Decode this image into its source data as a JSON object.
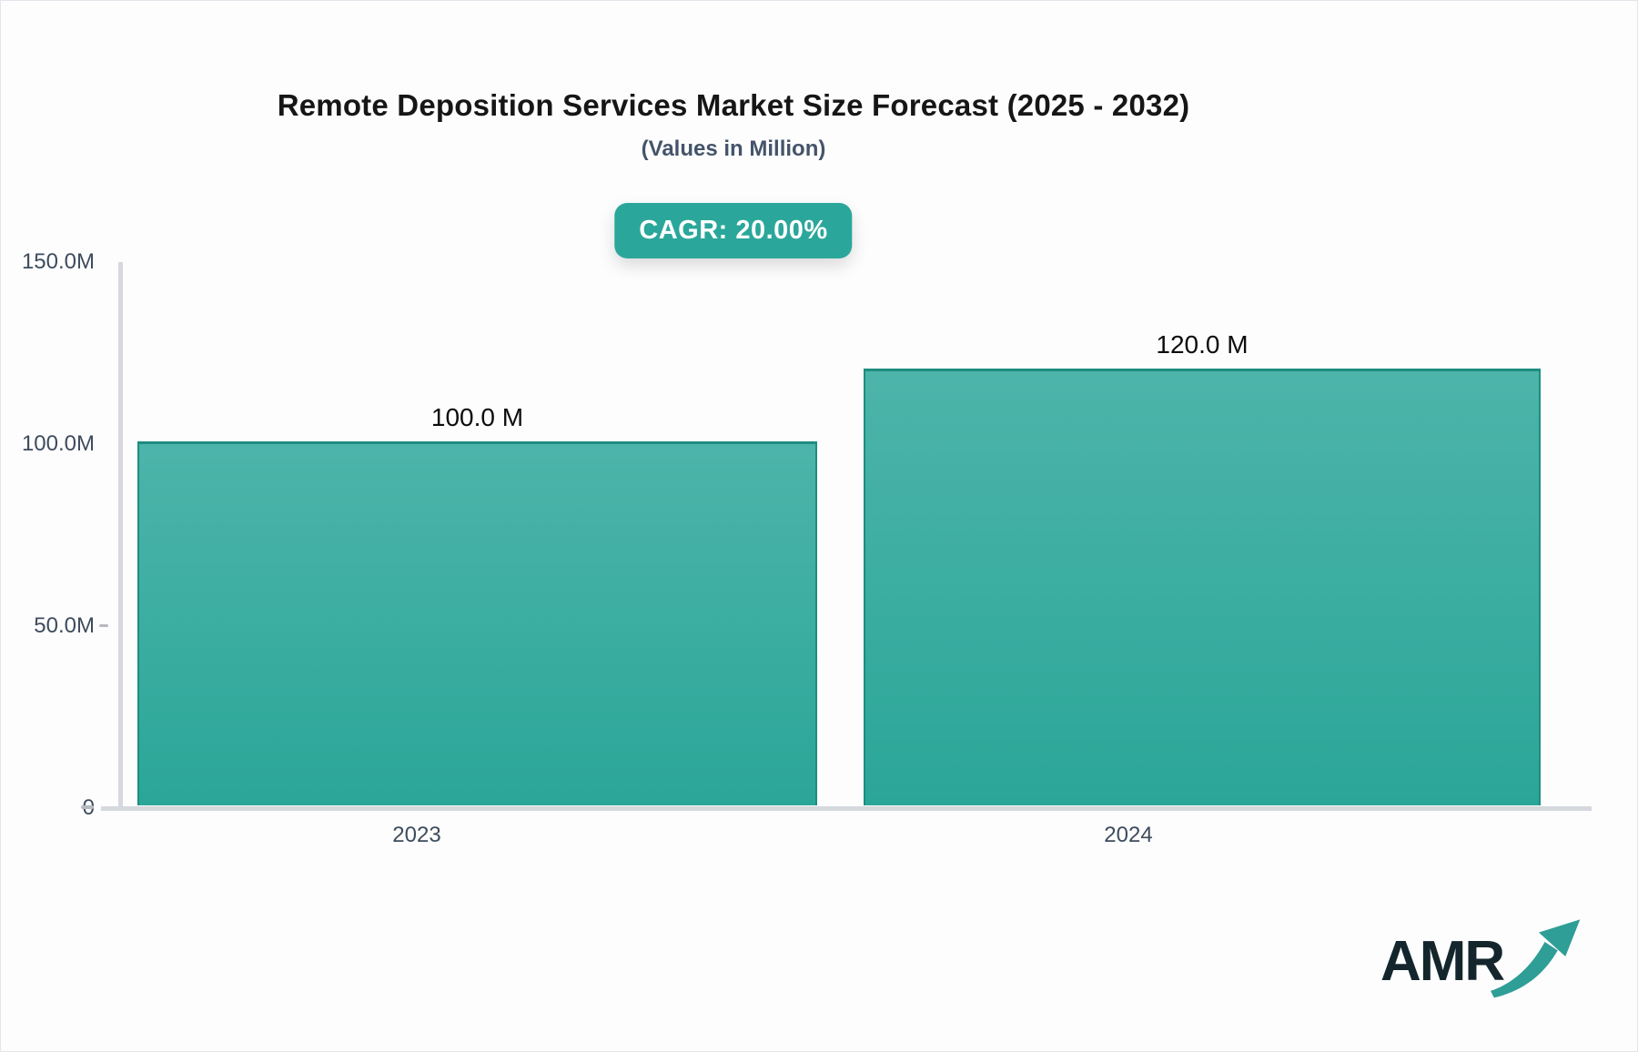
{
  "header": {
    "title": "Remote Deposition Services Market Size Forecast (2025 - 2032)",
    "subtitle": "(Values in Million)"
  },
  "badge": {
    "label": "CAGR: 20.00%",
    "bg_color": "#2aa79a",
    "text_color": "#ffffff"
  },
  "chart_data": {
    "type": "bar",
    "title": "Remote Deposition Services Market Size Forecast (2025 - 2032)",
    "subtitle": "(Values in Million)",
    "categories": [
      "2023",
      "2024"
    ],
    "values": [
      100.0,
      120.0
    ],
    "value_labels": [
      "100.0 M",
      "120.0 M"
    ],
    "y_tick_labels": [
      "150.0M",
      "100.0M",
      "50.0M",
      "0"
    ],
    "y_tick_values": [
      150,
      100,
      50,
      0
    ],
    "ylim": [
      0,
      150
    ],
    "grid": false,
    "legend": false,
    "cagr_percent": "20.00%",
    "colors": {
      "bar_top": "#4db4aa",
      "bar_bottom": "#2aa698",
      "bar_edge": "#1f8d80",
      "axis_line": "#d5d8dd",
      "tick": "#b6bac0",
      "axis_label": "#3e4c5d",
      "value_label": "#0d0d0d"
    }
  },
  "logo": {
    "text": "AMR",
    "text_color": "#14262c",
    "arrow_color": "#2e9e96"
  }
}
